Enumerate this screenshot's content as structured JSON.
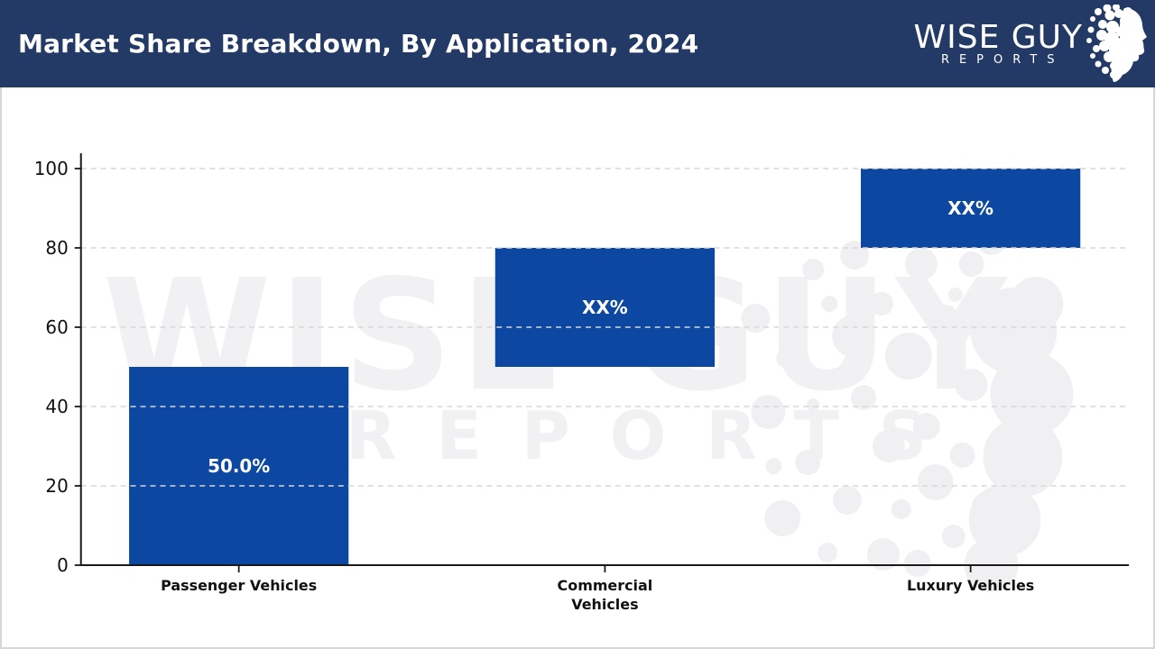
{
  "header": {
    "title": "Market Share Breakdown, By Application, 2024",
    "logo": {
      "line1": "WISE GUY",
      "line2": "REPORTS"
    }
  },
  "watermark": {
    "line1": "WISE GUY",
    "line2": "REPORTS"
  },
  "chart_data": {
    "type": "bar",
    "subtype": "floating-segments",
    "title": "Market Share Breakdown, By Application, 2024",
    "categories": [
      "Passenger Vehicles",
      "Commercial Vehicles",
      "Luxury Vehicles"
    ],
    "category_lines": [
      [
        "Passenger Vehicles"
      ],
      [
        "Commercial",
        "Vehicles"
      ],
      [
        "Luxury Vehicles"
      ]
    ],
    "series": [
      {
        "segments": [
          {
            "category": "Passenger Vehicles",
            "from": 0,
            "to": 50,
            "label": "50.0%"
          },
          {
            "category": "Commercial Vehicles",
            "from": 50,
            "to": 80,
            "label": "XX%"
          },
          {
            "category": "Luxury Vehicles",
            "from": 80,
            "to": 100,
            "label": "XX%"
          }
        ]
      }
    ],
    "ylim": [
      0,
      100
    ],
    "yticks": [
      0,
      20,
      40,
      60,
      80,
      100
    ],
    "grid": {
      "horizontal": true,
      "style": "dashed",
      "drawn_over_bars": true
    },
    "legend": "none",
    "xlabel": "",
    "ylabel": ""
  },
  "colors": {
    "header_bg": "#233A66",
    "bar": "#0C47A1",
    "bar_label": "#FFFFFF",
    "axis": "#1A1A1A",
    "grid": "#D7D7D7",
    "watermark": "#F0F0F2",
    "border": "#D6D6D6",
    "title_text": "#FFFFFF"
  }
}
